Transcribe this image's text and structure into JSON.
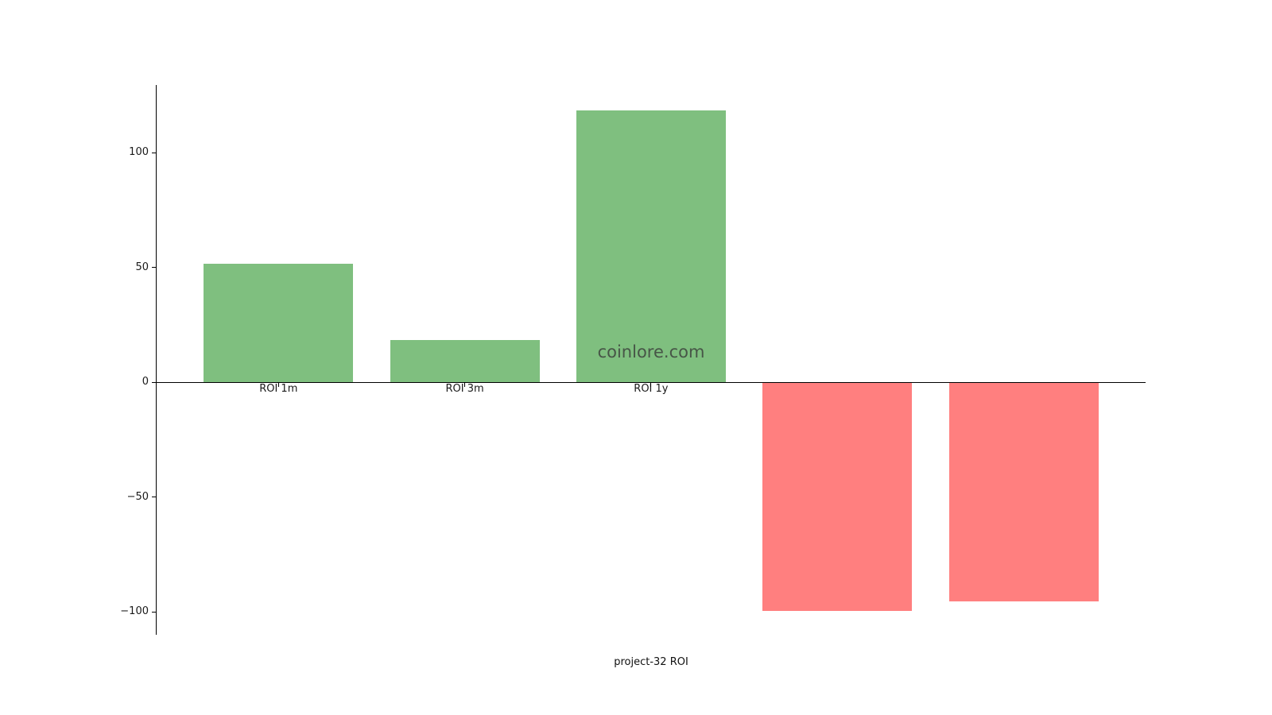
{
  "watermark": {
    "text": "coinlore.com"
  },
  "chart_data": {
    "type": "bar",
    "title": "project-32 ROI",
    "xlabel": "",
    "ylabel": "",
    "categories": [
      "ROI 1m",
      "ROI 3m",
      "ROI 1y",
      "",
      ""
    ],
    "values": [
      51.5,
      18.3,
      118.4,
      -99.6,
      -95.6
    ],
    "positive_color": "#7fbf7f",
    "negative_color": "#ff7f7f",
    "axis_color": "#000000",
    "yticks": [
      100,
      50,
      0,
      -50,
      -100
    ],
    "ytick_labels": [
      "100",
      "50",
      "0",
      "−50",
      "−100"
    ],
    "ylim": [
      -110,
      129
    ],
    "grid": false,
    "legend": "none",
    "background": "#ffffff"
  }
}
